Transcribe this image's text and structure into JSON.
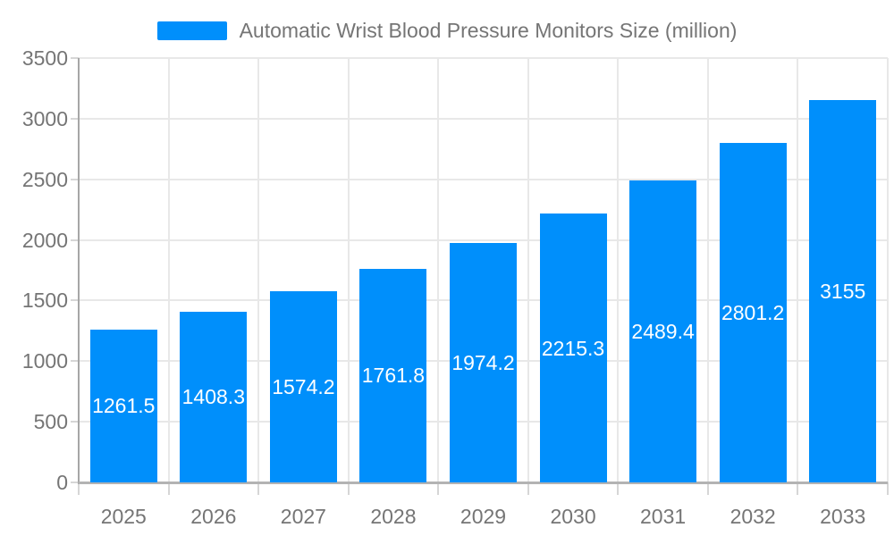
{
  "chart_data": {
    "type": "bar",
    "title": "Automatic Wrist Blood Pressure Monitors Size (million)",
    "legend_label": "Automatic Wrist Blood Pressure Monitors Size (million)",
    "categories": [
      "2025",
      "2026",
      "2027",
      "2028",
      "2029",
      "2030",
      "2031",
      "2032",
      "2033"
    ],
    "values": [
      1261.5,
      1408.3,
      1574.2,
      1761.8,
      1974.2,
      2215.3,
      2489.4,
      2801.2,
      3155
    ],
    "value_labels": [
      "1261.5",
      "1408.3",
      "1574.2",
      "1761.8",
      "1974.2",
      "2215.3",
      "2489.4",
      "2801.2",
      "3155"
    ],
    "xlabel": "",
    "ylabel": "",
    "ylim": [
      0,
      3500
    ],
    "ytick_step": 500,
    "ytick_labels": [
      "0",
      "500",
      "1000",
      "1500",
      "2000",
      "2500",
      "3000",
      "3500"
    ],
    "grid": "both",
    "legend_position": "top",
    "value_labels_position": "inside-center",
    "colors": {
      "bar": "#008FFB",
      "value_label": "#ffffff",
      "axis_label": "#757575",
      "gridline": "#e8e8e8",
      "axis_line": "#a6a6a6",
      "baseline": "#b3b3b3",
      "tick": "#d6d6d6",
      "background": "#ffffff"
    }
  }
}
